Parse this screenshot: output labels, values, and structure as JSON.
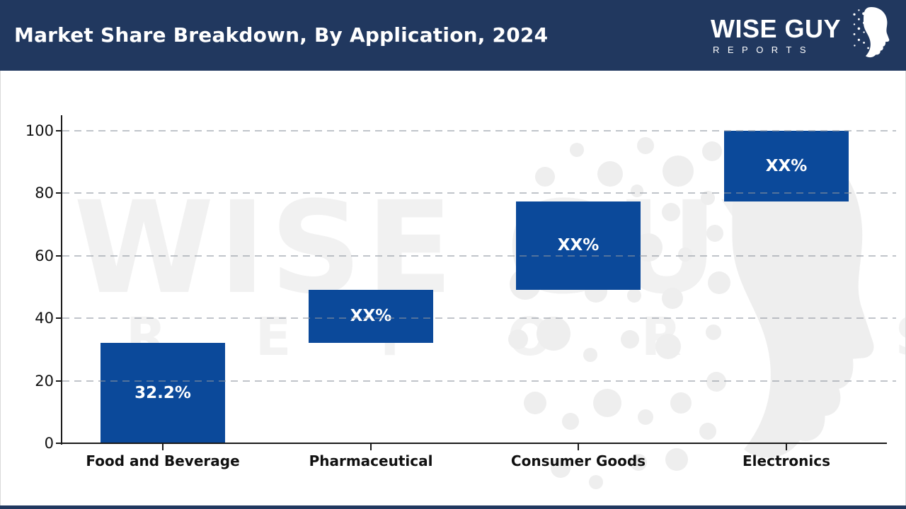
{
  "header": {
    "title": "Market Share Breakdown, By Application, 2024",
    "logo": {
      "line1": "WISE GUY",
      "line2": "REPORTS"
    }
  },
  "watermark": {
    "line1": "WISE GUY",
    "line2": "REPORTS"
  },
  "colors": {
    "header_bg": "#21385f",
    "bar": "#0b499a",
    "axis": "#1a1a1a",
    "grid": "#8d949e",
    "value_label": "#ffffff",
    "watermark": "#f1f1f1"
  },
  "chart_data": {
    "type": "bar",
    "subtype": "waterfall",
    "title": "Market Share Breakdown, By Application, 2024",
    "categories": [
      "Food and Beverage",
      "Pharmaceutical",
      "Consumer Goods",
      "Electronics"
    ],
    "segments": [
      {
        "category": "Food and Beverage",
        "start": 0,
        "end": 32.2,
        "label": "32.2%"
      },
      {
        "category": "Pharmaceutical",
        "start": 32.2,
        "end": 49.2,
        "label": "XX%"
      },
      {
        "category": "Consumer Goods",
        "start": 49.2,
        "end": 77.4,
        "label": "XX%"
      },
      {
        "category": "Electronics",
        "start": 77.4,
        "end": 100,
        "label": "XX%"
      }
    ],
    "ylim": [
      0,
      105
    ],
    "yticks": [
      0,
      20,
      40,
      60,
      80,
      100
    ],
    "xlabel": "",
    "ylabel": "",
    "grid": "horizontal-dashed",
    "legend": "none",
    "bar_color": "#0b499a"
  }
}
